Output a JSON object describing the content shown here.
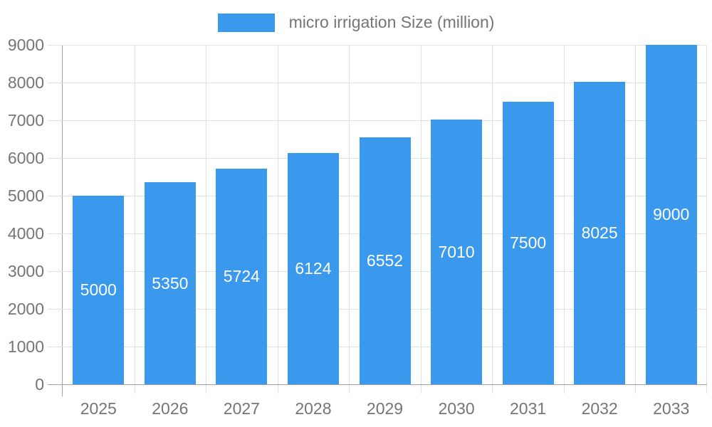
{
  "chart_data": {
    "type": "bar",
    "title": "",
    "categories": [
      "2025",
      "2026",
      "2027",
      "2028",
      "2029",
      "2030",
      "2031",
      "2032",
      "2033"
    ],
    "series": [
      {
        "name": "micro irrigation Size (million)",
        "values": [
          5000,
          5350,
          5724,
          6124,
          6552,
          7010,
          7500,
          8025,
          9000
        ]
      }
    ],
    "ylim": [
      0,
      9000
    ],
    "yticks": [
      0,
      1000,
      2000,
      3000,
      4000,
      5000,
      6000,
      7000,
      8000,
      9000
    ],
    "xlabel": "",
    "ylabel": "",
    "grid": true,
    "legend_position": "top",
    "bar_labels_shown": true
  },
  "colors": {
    "bar": "#3a99ed",
    "bar_label_text": "#ffffff",
    "axis_label_text": "#757575",
    "gridline": "#e0e0e0",
    "axis_line": "#a0a0a0",
    "background": "#ffffff"
  }
}
